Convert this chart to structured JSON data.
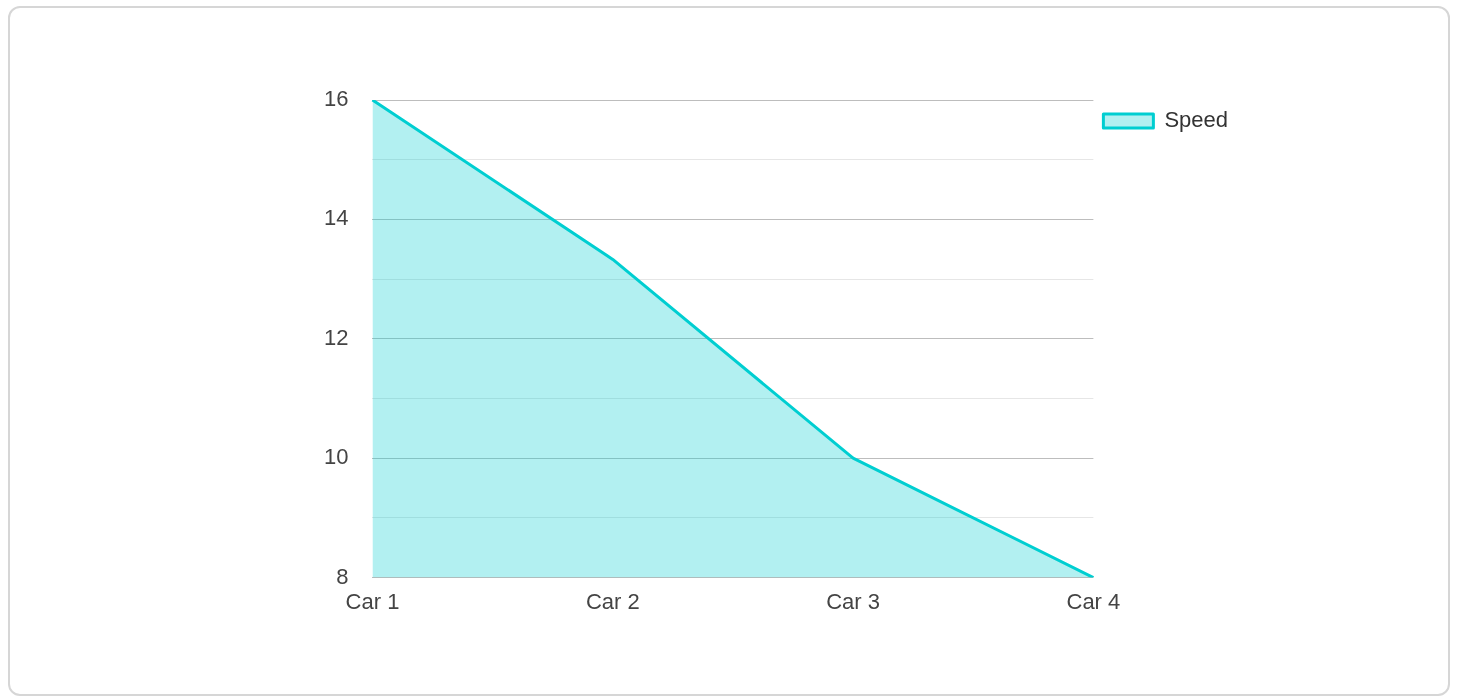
{
  "chart_data": {
    "type": "area",
    "categories": [
      "Car 1",
      "Car 2",
      "Car 3",
      "Car 4"
    ],
    "series": [
      {
        "name": "Speed",
        "color": "#00ced1",
        "values": [
          16,
          13.33,
          10,
          8
        ]
      }
    ],
    "ylim": [
      8,
      16
    ],
    "yticks": [
      8,
      {
        "value": 9,
        "label": null
      },
      10,
      {
        "value": 11,
        "label": null
      },
      12,
      {
        "value": 13,
        "label": null
      },
      14,
      {
        "value": 15,
        "label": null
      },
      16
    ],
    "grid": "y",
    "legend": "top right"
  }
}
